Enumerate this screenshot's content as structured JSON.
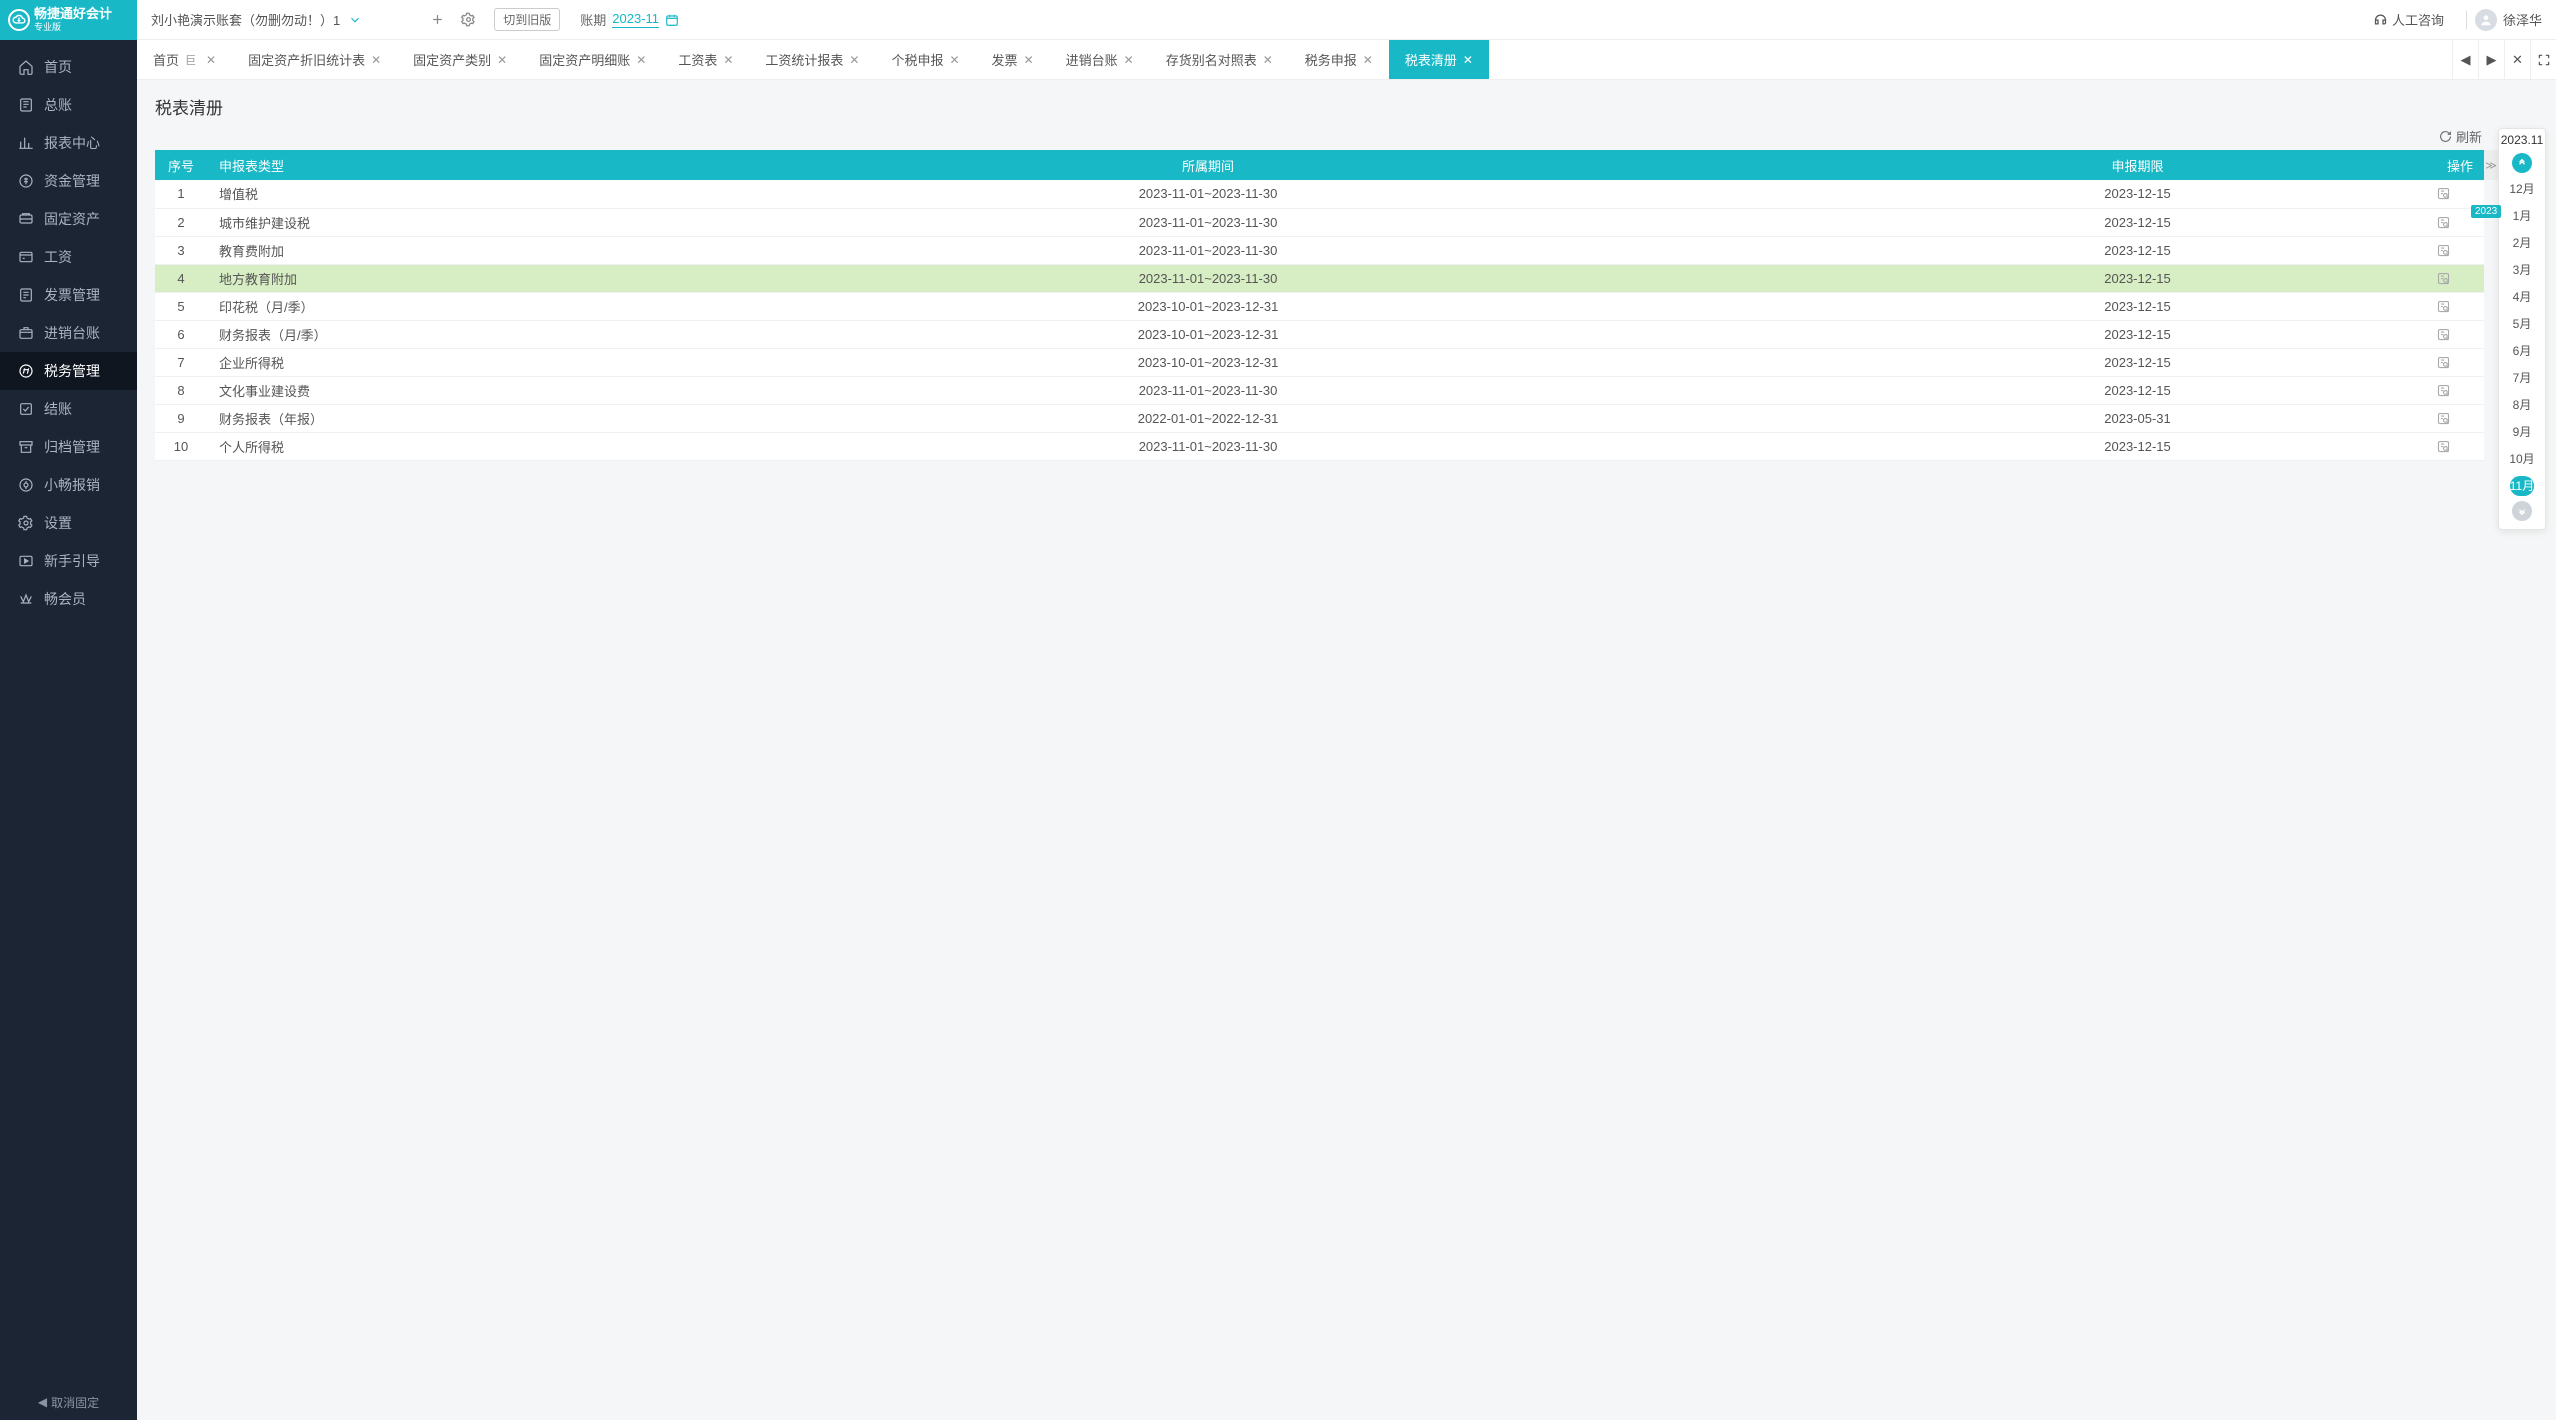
{
  "brand": {
    "name": "畅捷通好会计",
    "edition": "专业版"
  },
  "topbar": {
    "account_name": "刘小艳演示账套（勿删勿动！）1",
    "old_version_btn": "切到旧版",
    "period_label": "账期",
    "period_value": "2023-11",
    "consult_label": "人工咨询",
    "user_name": "徐泽华"
  },
  "sidebar": {
    "items": [
      {
        "label": "首页",
        "icon": "home"
      },
      {
        "label": "总账",
        "icon": "ledger"
      },
      {
        "label": "报表中心",
        "icon": "chart"
      },
      {
        "label": "资金管理",
        "icon": "fund"
      },
      {
        "label": "固定资产",
        "icon": "asset"
      },
      {
        "label": "工资",
        "icon": "salary"
      },
      {
        "label": "发票管理",
        "icon": "invoice"
      },
      {
        "label": "进销台账",
        "icon": "stock"
      },
      {
        "label": "税务管理",
        "icon": "tax",
        "active": true
      },
      {
        "label": "结账",
        "icon": "close"
      },
      {
        "label": "归档管理",
        "icon": "archive"
      },
      {
        "label": "小畅报销",
        "icon": "expense"
      },
      {
        "label": "设置",
        "icon": "settings"
      },
      {
        "label": "新手引导",
        "icon": "guide"
      },
      {
        "label": "畅会员",
        "icon": "vip"
      }
    ],
    "footer": "取消固定"
  },
  "tabs": [
    {
      "label": "首页",
      "closable": false,
      "extra": "巨"
    },
    {
      "label": "固定资产折旧统计表",
      "closable": true
    },
    {
      "label": "固定资产类别",
      "closable": true
    },
    {
      "label": "固定资产明细账",
      "closable": true
    },
    {
      "label": "工资表",
      "closable": true
    },
    {
      "label": "工资统计报表",
      "closable": true
    },
    {
      "label": "个税申报",
      "closable": true
    },
    {
      "label": "发票",
      "closable": true
    },
    {
      "label": "进销台账",
      "closable": true
    },
    {
      "label": "存货别名对照表",
      "closable": true
    },
    {
      "label": "税务申报",
      "closable": true
    },
    {
      "label": "税表清册",
      "closable": true,
      "active": true
    }
  ],
  "page": {
    "title": "税表清册",
    "refresh_label": "刷新",
    "columns": {
      "seq": "序号",
      "type": "申报表类型",
      "period": "所属期间",
      "deadline": "申报期限",
      "op": "操作"
    },
    "rows": [
      {
        "seq": "1",
        "type": "增值税",
        "period": "2023-11-01~2023-11-30",
        "deadline": "2023-12-15"
      },
      {
        "seq": "2",
        "type": "城市维护建设税",
        "period": "2023-11-01~2023-11-30",
        "deadline": "2023-12-15"
      },
      {
        "seq": "3",
        "type": "教育费附加",
        "period": "2023-11-01~2023-11-30",
        "deadline": "2023-12-15"
      },
      {
        "seq": "4",
        "type": "地方教育附加",
        "period": "2023-11-01~2023-11-30",
        "deadline": "2023-12-15",
        "highlight": true
      },
      {
        "seq": "5",
        "type": "印花税（月/季）",
        "period": "2023-10-01~2023-12-31",
        "deadline": "2023-12-15"
      },
      {
        "seq": "6",
        "type": "财务报表（月/季）",
        "period": "2023-10-01~2023-12-31",
        "deadline": "2023-12-15"
      },
      {
        "seq": "7",
        "type": "企业所得税",
        "period": "2023-10-01~2023-12-31",
        "deadline": "2023-12-15"
      },
      {
        "seq": "8",
        "type": "文化事业建设费",
        "period": "2023-11-01~2023-11-30",
        "deadline": "2023-12-15"
      },
      {
        "seq": "9",
        "type": "财务报表（年报）",
        "period": "2022-01-01~2022-12-31",
        "deadline": "2023-05-31"
      },
      {
        "seq": "10",
        "type": "个人所得税",
        "period": "2023-11-01~2023-11-30",
        "deadline": "2023-12-15"
      }
    ]
  },
  "ym_panel": {
    "year": "2023.11",
    "badge_year": "2023",
    "months": [
      "12月",
      "1月",
      "2月",
      "3月",
      "4月",
      "5月",
      "6月",
      "7月",
      "8月",
      "9月",
      "10月",
      "11月"
    ],
    "selected": "11月",
    "badge_on": "1月"
  },
  "colors": {
    "primary": "#18b8c6",
    "sidebar_bg": "#1b2533",
    "sidebar_active": "#0f1620",
    "row_highlight": "#d7edc3",
    "content_bg": "#f5f6f7"
  }
}
